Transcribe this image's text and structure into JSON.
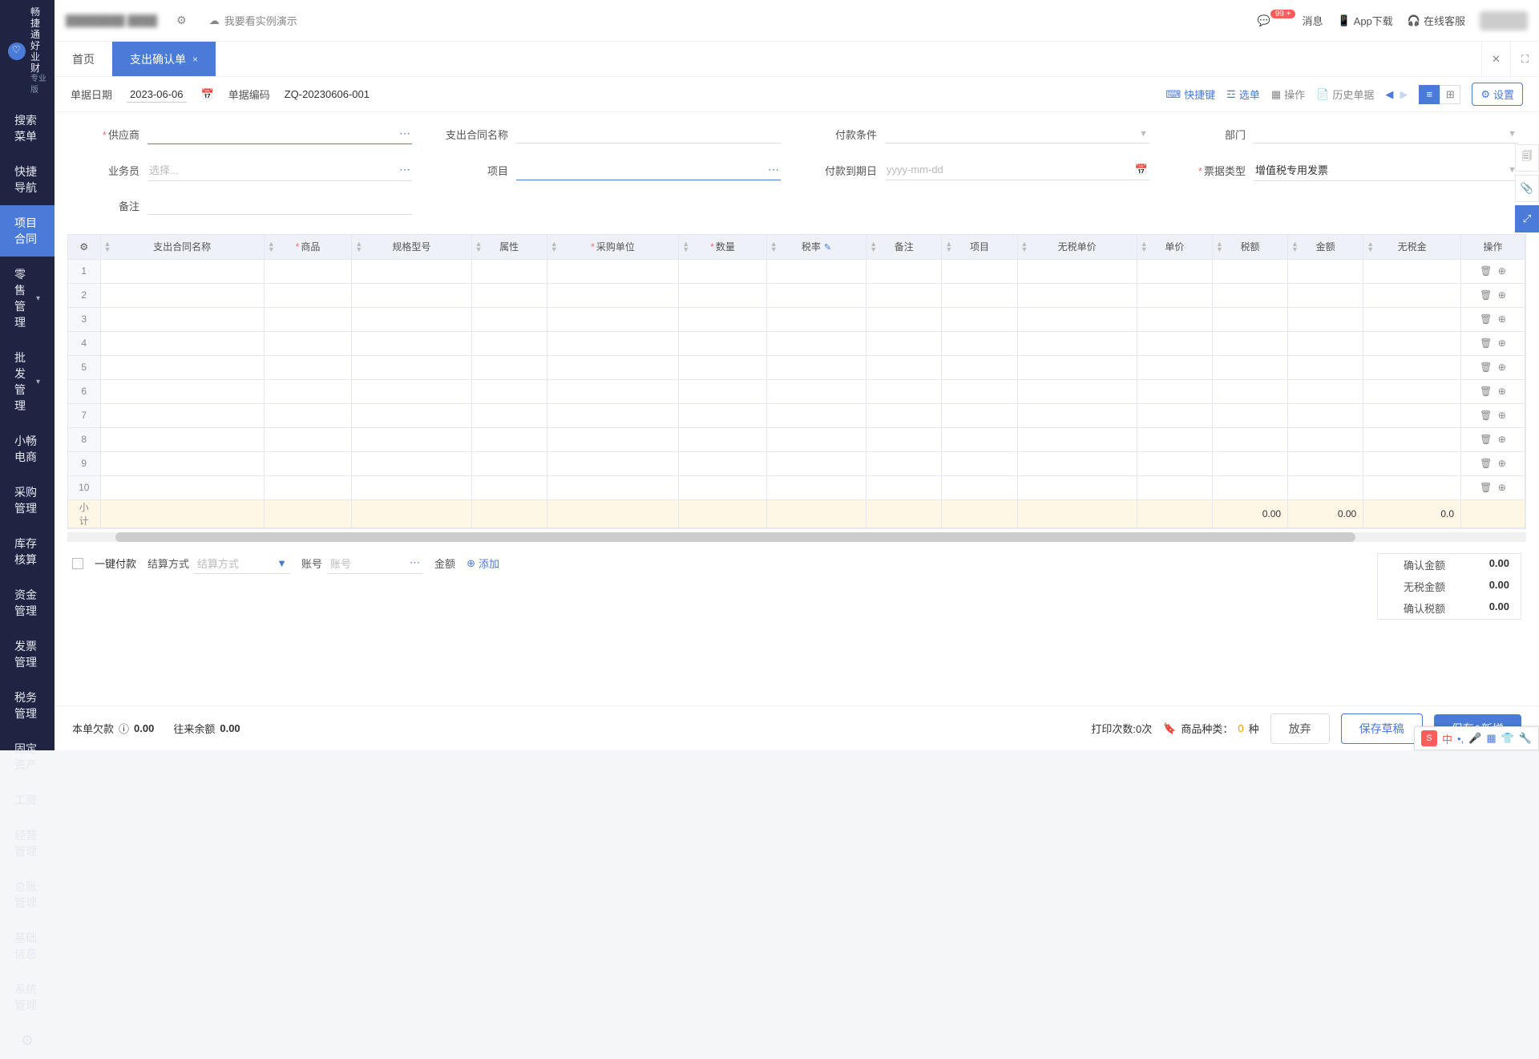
{
  "brand": {
    "name": "畅捷通好业财",
    "edition": "专业版"
  },
  "topbar": {
    "demo": "我要看实例演示",
    "msg": "消息",
    "msg_badge": "99 +",
    "app": "App下载",
    "support": "在线客服"
  },
  "sidebar": {
    "items": [
      {
        "label": "搜索菜单",
        "expand": false
      },
      {
        "label": "快捷导航",
        "expand": false
      },
      {
        "label": "项目合同",
        "expand": false,
        "active": true
      },
      {
        "label": "零售管理",
        "expand": true
      },
      {
        "label": "批发管理",
        "expand": true
      },
      {
        "label": "小畅电商",
        "expand": false
      },
      {
        "label": "采购管理",
        "expand": false
      },
      {
        "label": "库存核算",
        "expand": false
      },
      {
        "label": "资金管理",
        "expand": false
      },
      {
        "label": "发票管理",
        "expand": false
      },
      {
        "label": "税务管理",
        "expand": false
      },
      {
        "label": "固定资产",
        "expand": false
      },
      {
        "label": "工资",
        "expand": false
      },
      {
        "label": "经营管理",
        "expand": false
      },
      {
        "label": "总账管理",
        "expand": false
      },
      {
        "label": "基础信息",
        "expand": false
      },
      {
        "label": "系统管理",
        "expand": false
      }
    ]
  },
  "tabs": {
    "home": "首页",
    "active": "支出确认单"
  },
  "docbar": {
    "date_label": "单据日期",
    "date": "2023-06-06",
    "code_label": "单据编码",
    "code": "ZQ-20230606-001",
    "shortcut": "快捷键",
    "select": "选单",
    "operate": "操作",
    "history": "历史单据",
    "settings": "设置"
  },
  "form": {
    "supplier": "供应商",
    "contract_name": "支出合同名称",
    "pay_terms": "付款条件",
    "dept": "部门",
    "operator": "业务员",
    "operator_ph": "选择...",
    "project": "项目",
    "pay_due": "付款到期日",
    "pay_due_ph": "yyyy-mm-dd",
    "invoice_type": "票据类型",
    "invoice_type_val": "增值税专用发票",
    "remark": "备注"
  },
  "table": {
    "cols": [
      "支出合同名称",
      "商品",
      "规格型号",
      "属性",
      "采购单位",
      "数量",
      "税率",
      "备注",
      "项目",
      "无税单价",
      "单价",
      "税额",
      "金额",
      "无税金"
    ],
    "required": [
      false,
      true,
      false,
      false,
      true,
      true,
      false,
      false,
      false,
      false,
      false,
      false,
      false,
      false
    ],
    "op": "操作",
    "rows": 10,
    "subtotal": "小计",
    "subtotal_vals": {
      "tax": "0.00",
      "amount": "0.00",
      "notax": "0.0"
    }
  },
  "bottom": {
    "onekey": "一键付款",
    "settle": "结算方式",
    "settle_ph": "结算方式",
    "account": "账号",
    "account_ph": "账号",
    "amount": "金额",
    "add": "添加"
  },
  "totals": {
    "confirm_amount": "确认金额",
    "confirm_amount_v": "0.00",
    "notax_amount": "无税金额",
    "notax_amount_v": "0.00",
    "confirm_tax": "确认税额",
    "confirm_tax_v": "0.00"
  },
  "footer": {
    "owe": "本单欠款",
    "owe_v": "0.00",
    "balance": "往来余额",
    "balance_v": "0.00",
    "print": "打印次数:0次",
    "kinds_label": "商品种类：",
    "kinds_v": "0",
    "kinds_unit": " 种",
    "abandon": "放弃",
    "draft": "保存草稿",
    "save_new": "保存&新增"
  },
  "floatbar": {
    "lang": "中"
  }
}
